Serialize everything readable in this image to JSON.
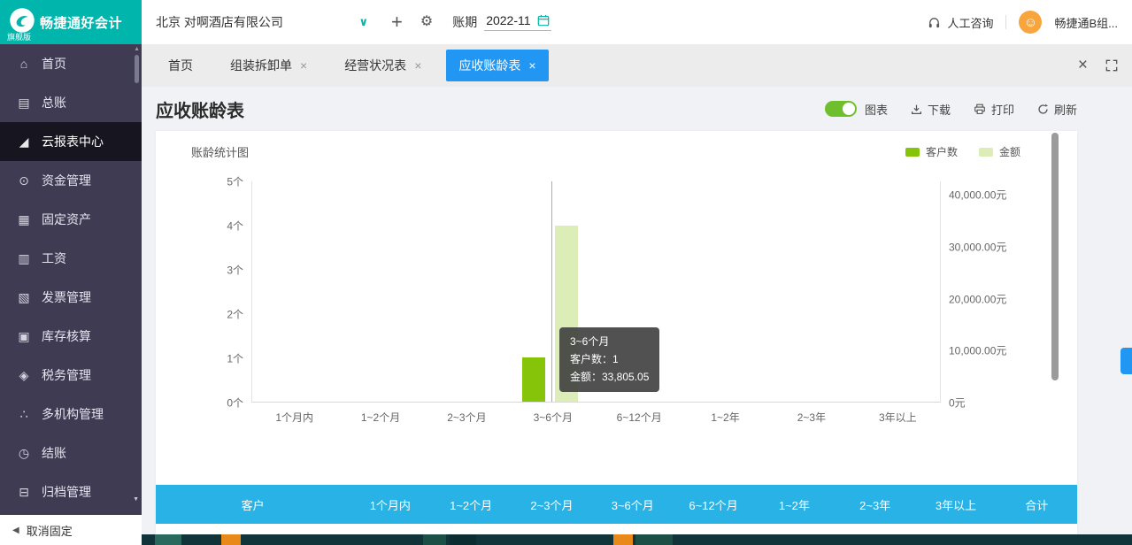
{
  "colors": {
    "accent_teal": "#00b5ab",
    "active_tab_blue": "#2196f3",
    "table_header_cyan": "#29b2e6",
    "toggle_on_green": "#6fbf2d",
    "sidebar_bg": "#3e3b52",
    "sidebar_active_bg": "#17151f"
  },
  "icons": {
    "close": "×",
    "chevron_down": "∨",
    "plus": "+",
    "gear": "⚙",
    "scroll_up": "▲",
    "scroll_down": "▼",
    "collapse_left": "◀",
    "avatar_face": "☺"
  },
  "sidebar": {
    "logo": {
      "brand": "畅捷通好会计",
      "edition": "旗舰版"
    },
    "items": [
      {
        "label": "首页",
        "icon": "home",
        "glyph": "⌂",
        "active": false
      },
      {
        "label": "总账",
        "icon": "general-ledger",
        "glyph": "▤",
        "active": false
      },
      {
        "label": "云报表中心",
        "icon": "cloud-report-center",
        "glyph": "◢",
        "active": true
      },
      {
        "label": "资金管理",
        "icon": "fund-management",
        "glyph": "⊙",
        "active": false
      },
      {
        "label": "固定资产",
        "icon": "fixed-assets",
        "glyph": "▦",
        "active": false
      },
      {
        "label": "工资",
        "icon": "salary",
        "glyph": "▥",
        "active": false
      },
      {
        "label": "发票管理",
        "icon": "invoice-management",
        "glyph": "▧",
        "active": false
      },
      {
        "label": "库存核算",
        "icon": "inventory-accounting",
        "glyph": "▣",
        "active": false
      },
      {
        "label": "税务管理",
        "icon": "tax-management",
        "glyph": "◈",
        "active": false
      },
      {
        "label": "多机构管理",
        "icon": "multi-org-management",
        "glyph": "∴",
        "active": false
      },
      {
        "label": "结账",
        "icon": "closing",
        "glyph": "◷",
        "active": false
      },
      {
        "label": "归档管理",
        "icon": "archive-management",
        "glyph": "⊟",
        "active": false
      }
    ],
    "unpin_label": "取消固定"
  },
  "topbar": {
    "company": "北京 对啊酒店有限公司",
    "period_label": "账期",
    "period_value": "2022-11",
    "consult_label": "人工咨询",
    "user_name": "畅捷通B组..."
  },
  "tabs": [
    {
      "label": "首页",
      "closable": false,
      "active": false
    },
    {
      "label": "组装拆卸单",
      "closable": true,
      "active": false
    },
    {
      "label": "经营状况表",
      "closable": true,
      "active": false
    },
    {
      "label": "应收账龄表",
      "closable": true,
      "active": true
    }
  ],
  "page": {
    "title": "应收账龄表",
    "toggle_label": "图表",
    "toggle_on": true,
    "download_label": "下载",
    "print_label": "打印",
    "refresh_label": "刷新"
  },
  "chart_data": {
    "type": "bar",
    "title": "账龄统计图",
    "categories": [
      "1个月内",
      "1~2个月",
      "2~3个月",
      "3~6个月",
      "6~12个月",
      "1~2年",
      "2~3年",
      "3年以上"
    ],
    "series": [
      {
        "name": "客户数",
        "axis": "left",
        "color": "#86c40a",
        "values": [
          0,
          0,
          0,
          1,
          0,
          0,
          0,
          0
        ]
      },
      {
        "name": "金额",
        "axis": "right",
        "color": "#dcedb8",
        "values": [
          0,
          0,
          0,
          33805.05,
          0,
          0,
          0,
          0
        ]
      }
    ],
    "left_axis": {
      "max": 5,
      "ticks": [
        "5个",
        "4个",
        "3个",
        "2个",
        "1个",
        "0个"
      ]
    },
    "right_axis": {
      "max": 40000,
      "ticks": [
        "40,000.00元",
        "30,000.00元",
        "20,000.00元",
        "10,000.00元",
        "0元"
      ]
    },
    "legend_position": "top-right",
    "grid": false,
    "highlighted_category": "3~6个月",
    "tooltip": {
      "title": "3~6个月",
      "lines": [
        "客户数：1",
        "金额：33,805.05"
      ]
    }
  },
  "table": {
    "headers": [
      "客户",
      "1个月内",
      "1~2个月",
      "2~3个月",
      "3~6个月",
      "6~12个月",
      "1~2年",
      "2~3年",
      "3年以上",
      "合计"
    ]
  }
}
